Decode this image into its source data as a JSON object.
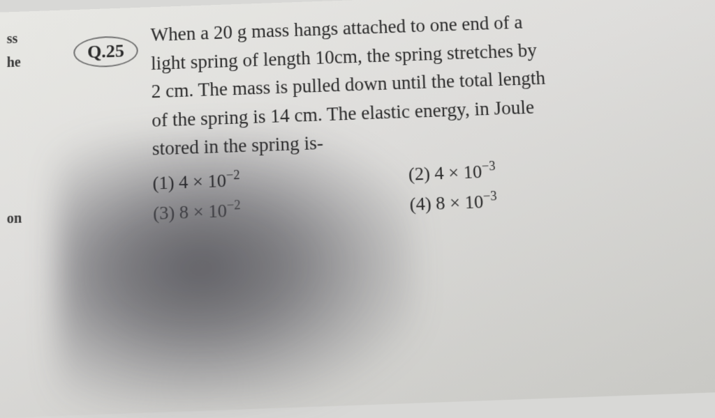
{
  "margin": {
    "ss": "ss",
    "he": "he",
    "on": "on"
  },
  "question": {
    "number": "Q.25",
    "line1": "When a 20 g mass hangs attached to one end of a",
    "line2": "light spring of length 10cm, the spring stretches by",
    "line3": "2 cm. The mass is pulled down until the total length",
    "line4": "of the spring is 14 cm. The elastic energy, in Joule",
    "line5": "stored in the spring is-"
  },
  "options": {
    "o1_prefix": "(1) 4 × 10",
    "o1_exp": "−2",
    "o2_prefix": "(2) 4 × 10",
    "o2_exp": "−3",
    "o3_prefix": "(3) 8 × 10",
    "o3_exp": "−2",
    "o4_prefix": "(4) 8 × 10",
    "o4_exp": "−3"
  },
  "colors": {
    "text": "#2a2a2a",
    "background": "#dedddb",
    "shadow": "#1e1e28"
  }
}
